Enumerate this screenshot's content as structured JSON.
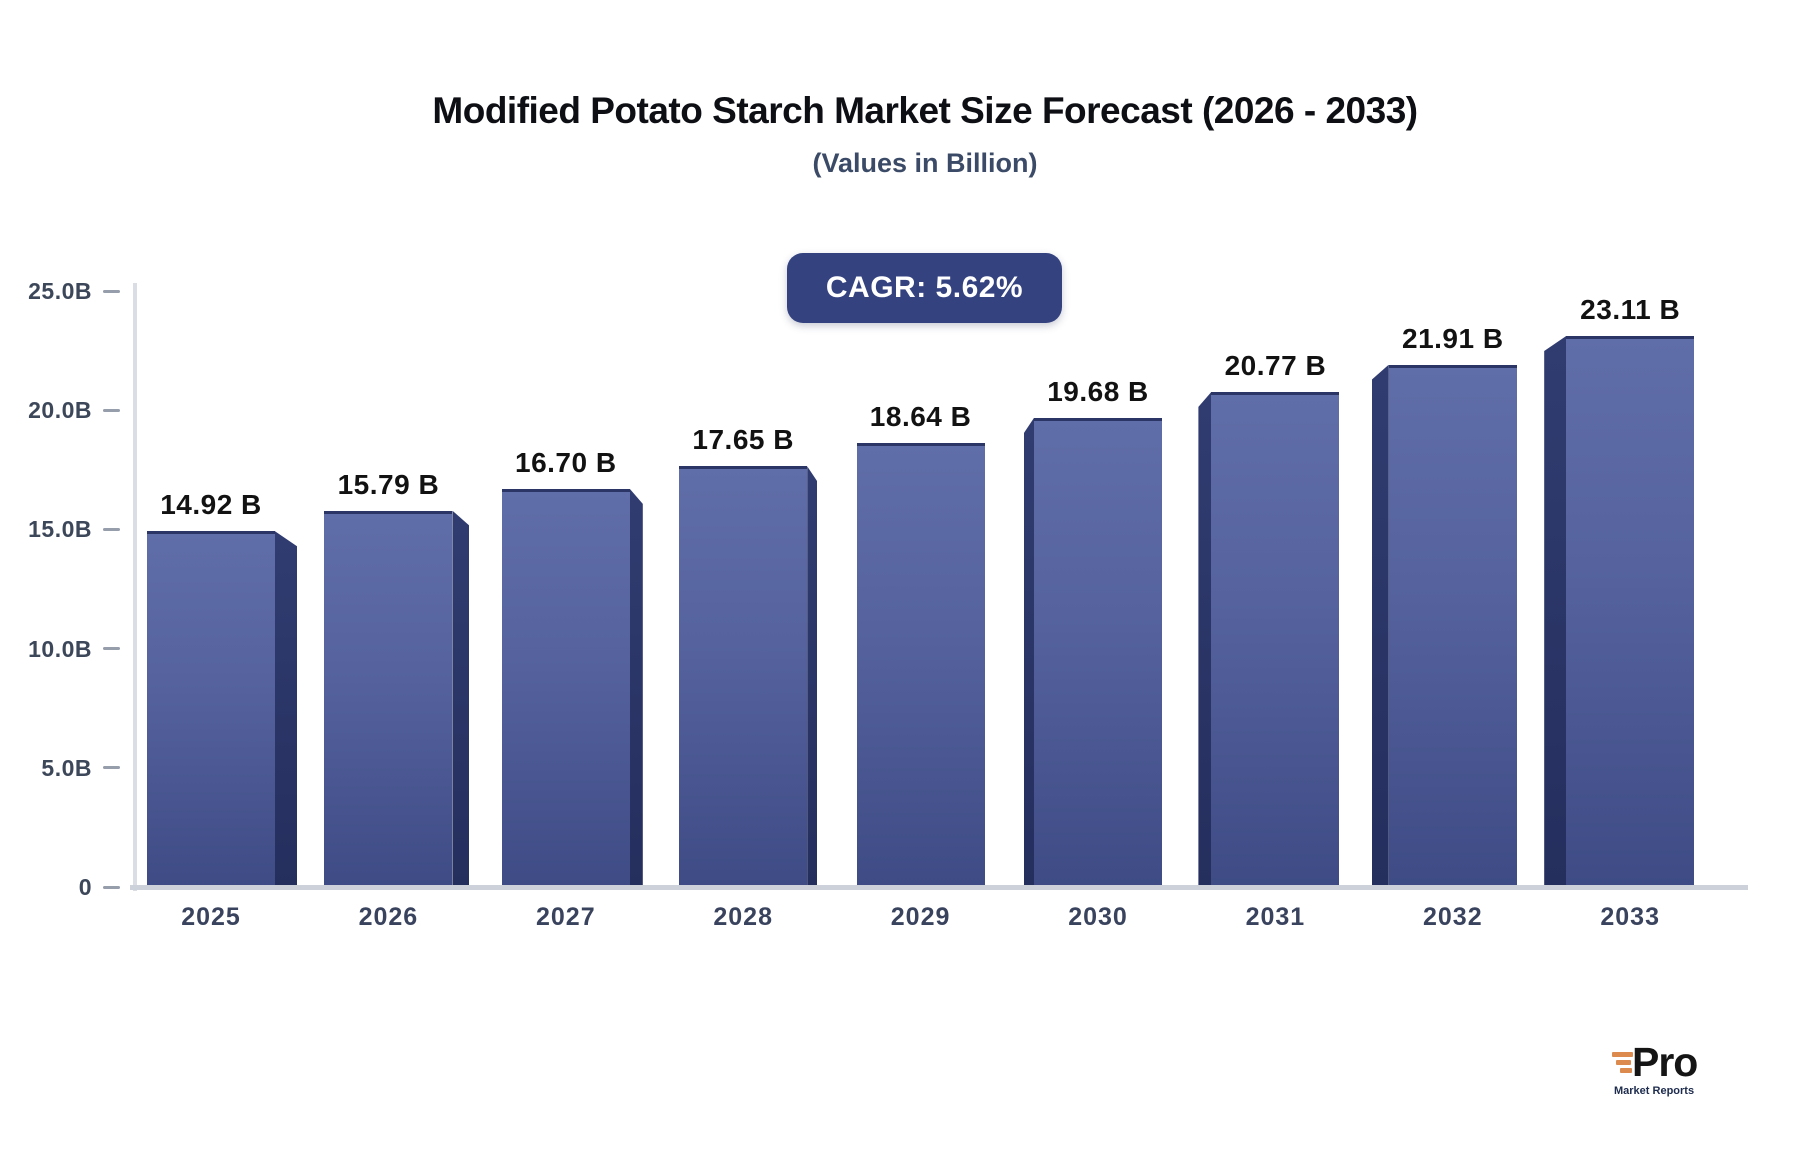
{
  "header": {
    "title": "Modified Potato Starch Market Size Forecast (2026 - 2033)",
    "subtitle": "(Values in Billion)",
    "cagr": "CAGR: 5.62%"
  },
  "chart_data": {
    "type": "bar",
    "title": "Modified Potato Starch Market Size Forecast (2026 - 2033)",
    "subtitle": "(Values in Billion)",
    "annotation": "CAGR: 5.62%",
    "xlabel": "",
    "ylabel": "",
    "categories": [
      "2025",
      "2026",
      "2027",
      "2028",
      "2029",
      "2030",
      "2031",
      "2032",
      "2033"
    ],
    "values": [
      14.92,
      15.79,
      16.7,
      17.65,
      18.64,
      19.68,
      20.77,
      21.91,
      23.11
    ],
    "value_labels": [
      "14.92 B",
      "15.79 B",
      "16.70 B",
      "17.65 B",
      "18.64 B",
      "19.68 B",
      "20.77 B",
      "21.91 B",
      "23.11 B"
    ],
    "y_ticks": [
      {
        "value": 0,
        "label": "0"
      },
      {
        "value": 5,
        "label": "5.0B"
      },
      {
        "value": 10,
        "label": "10.0B"
      },
      {
        "value": 15,
        "label": "15.0B"
      },
      {
        "value": 20,
        "label": "20.0B"
      },
      {
        "value": 25,
        "label": "25.0B"
      }
    ],
    "ylim": [
      0,
      25
    ],
    "grid": false,
    "legend": false,
    "bar_style": "3d-perspective"
  },
  "branding": {
    "name": "Pro",
    "tagline": "Market Reports"
  },
  "colors": {
    "badge_bg": "#344280",
    "badge_text": "#ffffff",
    "bar_top": "#5f6da8",
    "bar_mid": "#55629e",
    "bar_bottom": "#3e4b85",
    "bar_edge": "#2b3566",
    "side_top": "#303c70",
    "side_bottom": "#252f5e",
    "axis_line": "#dadde4",
    "baseline": "#ccd1da",
    "tick_dash": "#969dab",
    "tick_label": "#3c4759",
    "year_label": "#39435d",
    "value_label": "#121212",
    "title_text": "#0d0f14",
    "subtitle_text": "#3b4a66",
    "logo_orange": "#dc8a4e",
    "logo_name": "#151515",
    "logo_tagline": "#1d2b4d"
  }
}
